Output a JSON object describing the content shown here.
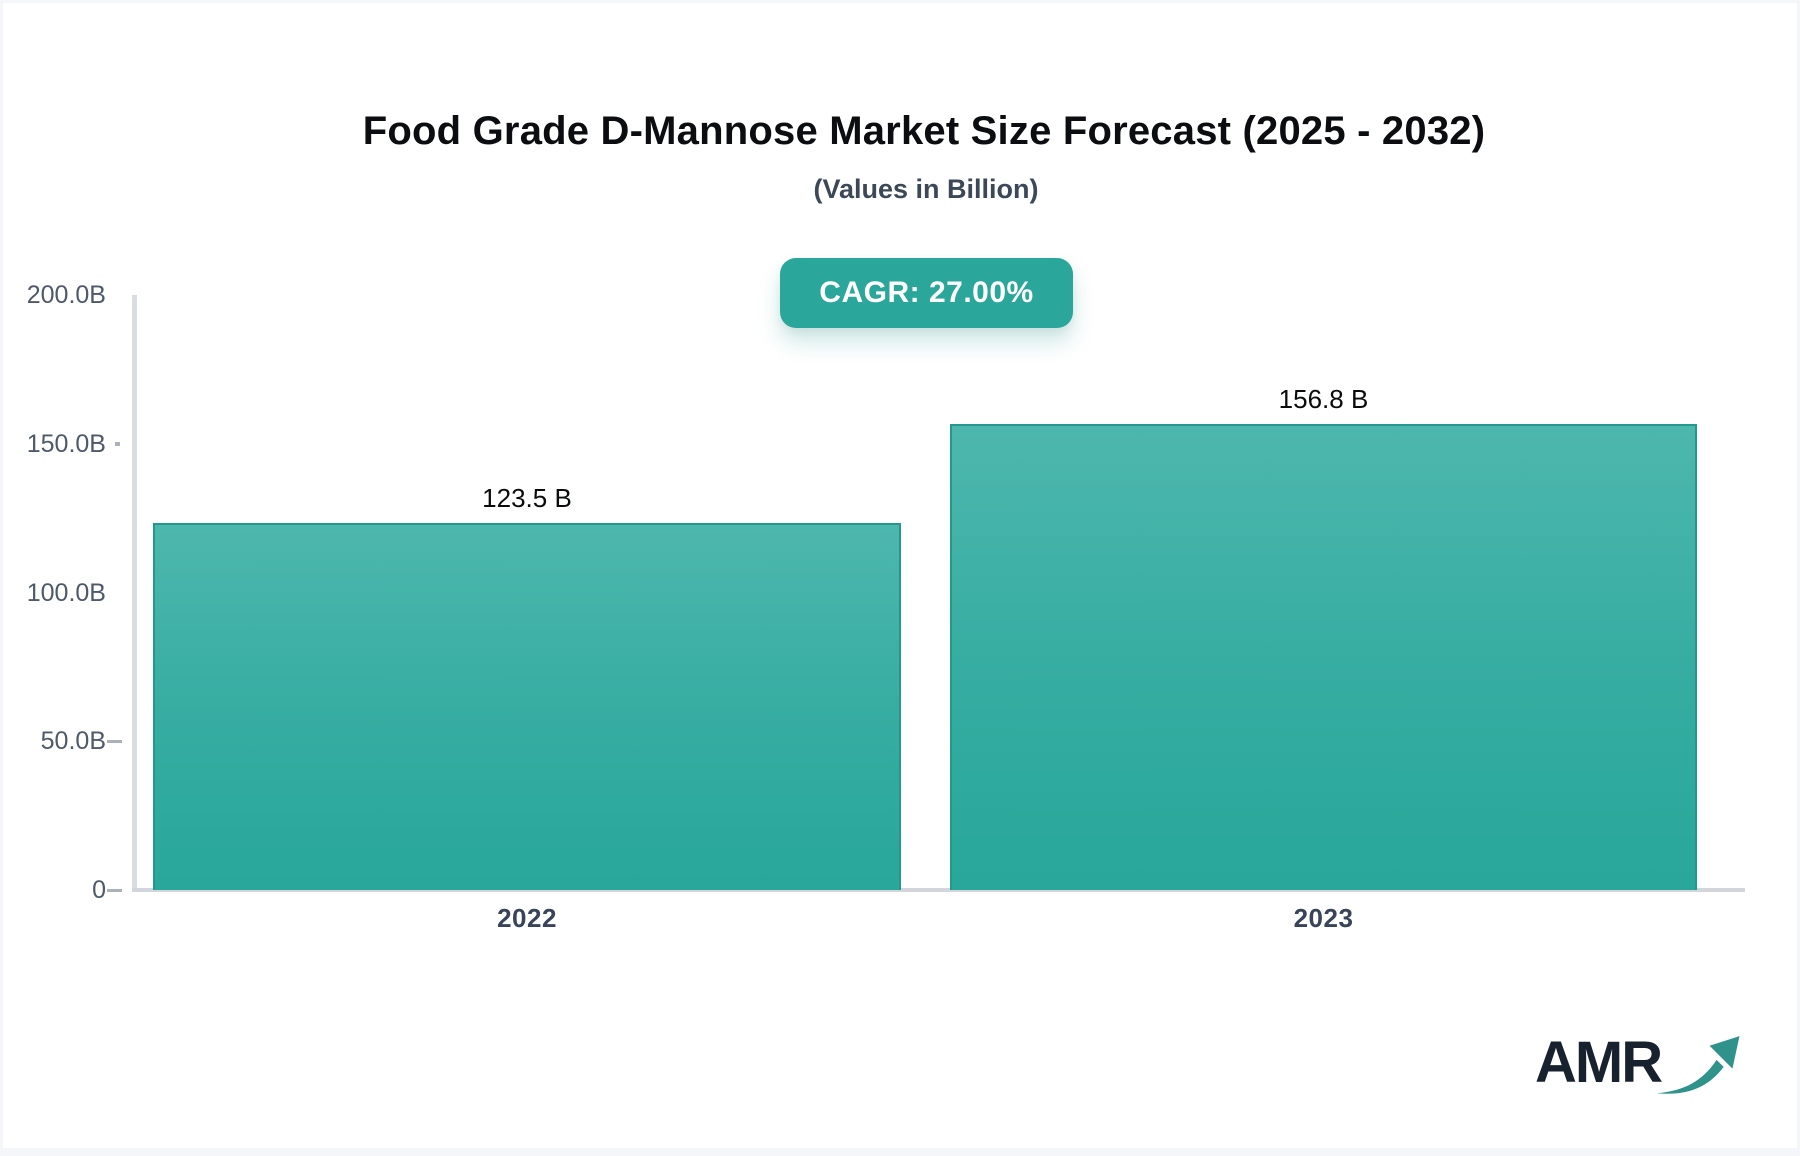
{
  "chart_data": {
    "type": "bar",
    "title": "Food Grade D-Mannose Market Size Forecast (2025 - 2032)",
    "subtitle": "(Values in Billion)",
    "categories": [
      "2022",
      "2023"
    ],
    "values": [
      123.5,
      156.8
    ],
    "value_labels": [
      "123.5 B",
      "156.8 B"
    ],
    "xlabel": "",
    "ylabel": "",
    "ylim": [
      0,
      200
    ],
    "yticks": [
      {
        "value": 200,
        "label": "200.0B",
        "tick": "none"
      },
      {
        "value": 150,
        "label": "150.0B",
        "tick": "dot"
      },
      {
        "value": 100,
        "label": "100.0B",
        "tick": "none"
      },
      {
        "value": 50,
        "label": "50.0B",
        "tick": "dash"
      },
      {
        "value": 0,
        "label": "0",
        "tick": "dash"
      }
    ],
    "grid": false,
    "legend": false,
    "bar_color_top": "#4db7ad",
    "bar_color_bottom": "#28a79a"
  },
  "badge": {
    "label": "CAGR: 27.00%",
    "background": "#2aa79a",
    "text_color": "#ffffff"
  },
  "logo": {
    "text": "AMR",
    "text_color": "#18222f",
    "arrow_color": "#2f928b"
  }
}
